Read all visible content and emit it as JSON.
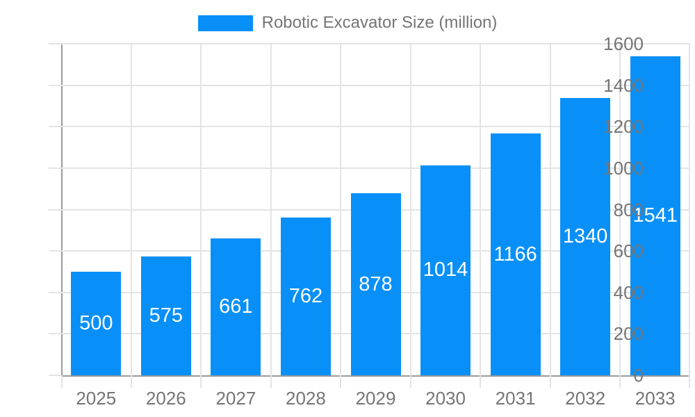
{
  "chart_data": {
    "type": "bar",
    "title": "Robotic Excavator Size (million)",
    "categories": [
      "2025",
      "2026",
      "2027",
      "2028",
      "2029",
      "2030",
      "2031",
      "2032",
      "2033"
    ],
    "values": [
      500,
      575,
      661,
      762,
      878,
      1014,
      1166,
      1340,
      1541
    ],
    "xlabel": "",
    "ylabel": "",
    "ylim": [
      0,
      1600
    ],
    "ytick_step": 200,
    "ytick_labels": [
      "0",
      "200",
      "400",
      "600",
      "800",
      "1000",
      "1200",
      "1400",
      "1600"
    ],
    "grid": true,
    "legend_position": "top-center",
    "bar_labels_inside": true,
    "colors": {
      "bar": "#0990f8",
      "bar_label_text": "#ffffff",
      "axis_line": "#9a9a9a",
      "gridline": "#e4e4e4",
      "tick_label_text": "#757575",
      "legend_text": "#757575",
      "background": "#ffffff"
    }
  }
}
